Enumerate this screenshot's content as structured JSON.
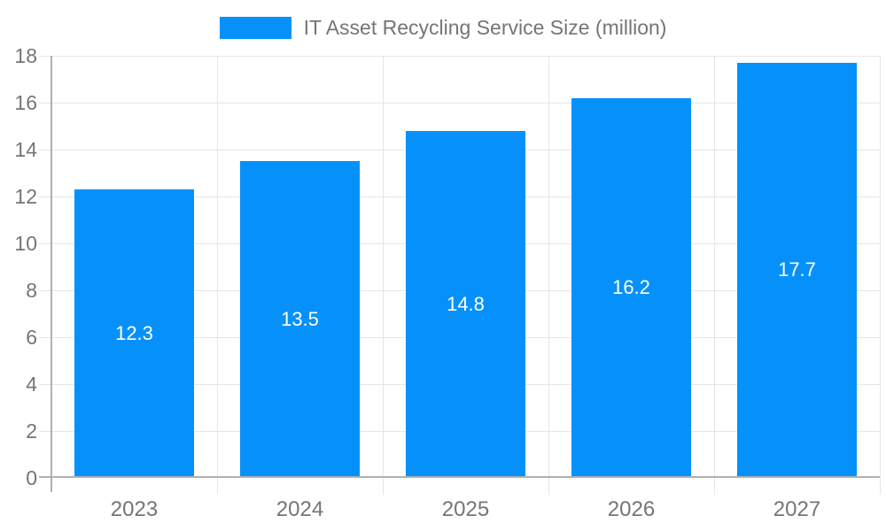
{
  "chart_data": {
    "type": "bar",
    "title": "IT Asset Recycling Service Size (million)",
    "categories": [
      "2023",
      "2024",
      "2025",
      "2026",
      "2027"
    ],
    "values": [
      12.3,
      13.5,
      14.8,
      16.2,
      17.7
    ],
    "series": [
      {
        "name": "IT Asset Recycling Service Size (million)",
        "values": [
          12.3,
          13.5,
          14.8,
          16.2,
          17.7
        ]
      }
    ],
    "xlabel": "",
    "ylabel": "",
    "ylim": [
      0,
      18
    ],
    "ytick_step": 2,
    "ytick_labels": [
      "0",
      "2",
      "4",
      "6",
      "8",
      "10",
      "12",
      "14",
      "16",
      "18"
    ],
    "grid": true,
    "legend_position": "top",
    "colors": {
      "bar": "#0691FA",
      "bar_label": "#FFFFFF",
      "axis_text": "#757575",
      "gridline": "#E6E6E6",
      "axis_line": "#B0B0B0",
      "background": "#FFFFFF"
    }
  }
}
